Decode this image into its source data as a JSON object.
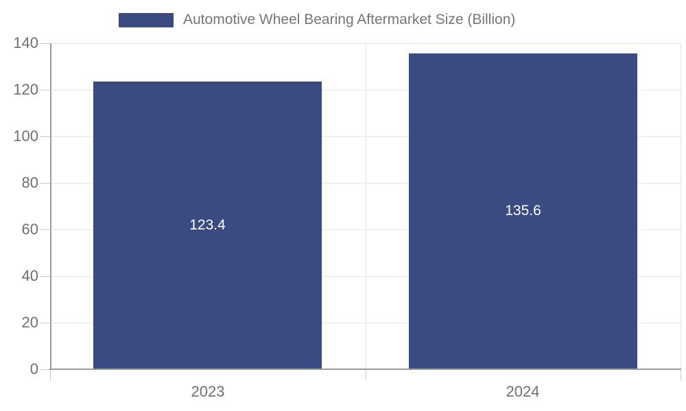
{
  "legend": {
    "label": "Automotive Wheel Bearing Aftermarket Size (Billion)"
  },
  "chart_data": {
    "type": "bar",
    "title": "Automotive Wheel Bearing Aftermarket Size (Billion)",
    "categories": [
      "2023",
      "2024"
    ],
    "series": [
      {
        "name": "Automotive Wheel Bearing Aftermarket Size (Billion)",
        "values": [
          123.4,
          135.6
        ],
        "value_labels": [
          "123.4",
          "135.6"
        ]
      }
    ],
    "xlabel": "",
    "ylabel": "",
    "ylim": [
      0,
      140
    ],
    "yticks": [
      0,
      20,
      40,
      60,
      80,
      100,
      120,
      140
    ],
    "ytick_labels": [
      "0",
      "20",
      "40",
      "60",
      "80",
      "100",
      "120",
      "140"
    ],
    "grid": true,
    "legend_position": "top"
  },
  "colors": {
    "bar": "#3A4B82",
    "axis_line": "#9a9a9a",
    "grid_line_h": "#e8e8e8",
    "grid_line_v": "#e2e2e2",
    "tick": "#c9c9c9",
    "axis_text": "#6f6f6f",
    "legend_text": "#757575",
    "value_text": "#ffffff",
    "background": "#ffffff"
  }
}
